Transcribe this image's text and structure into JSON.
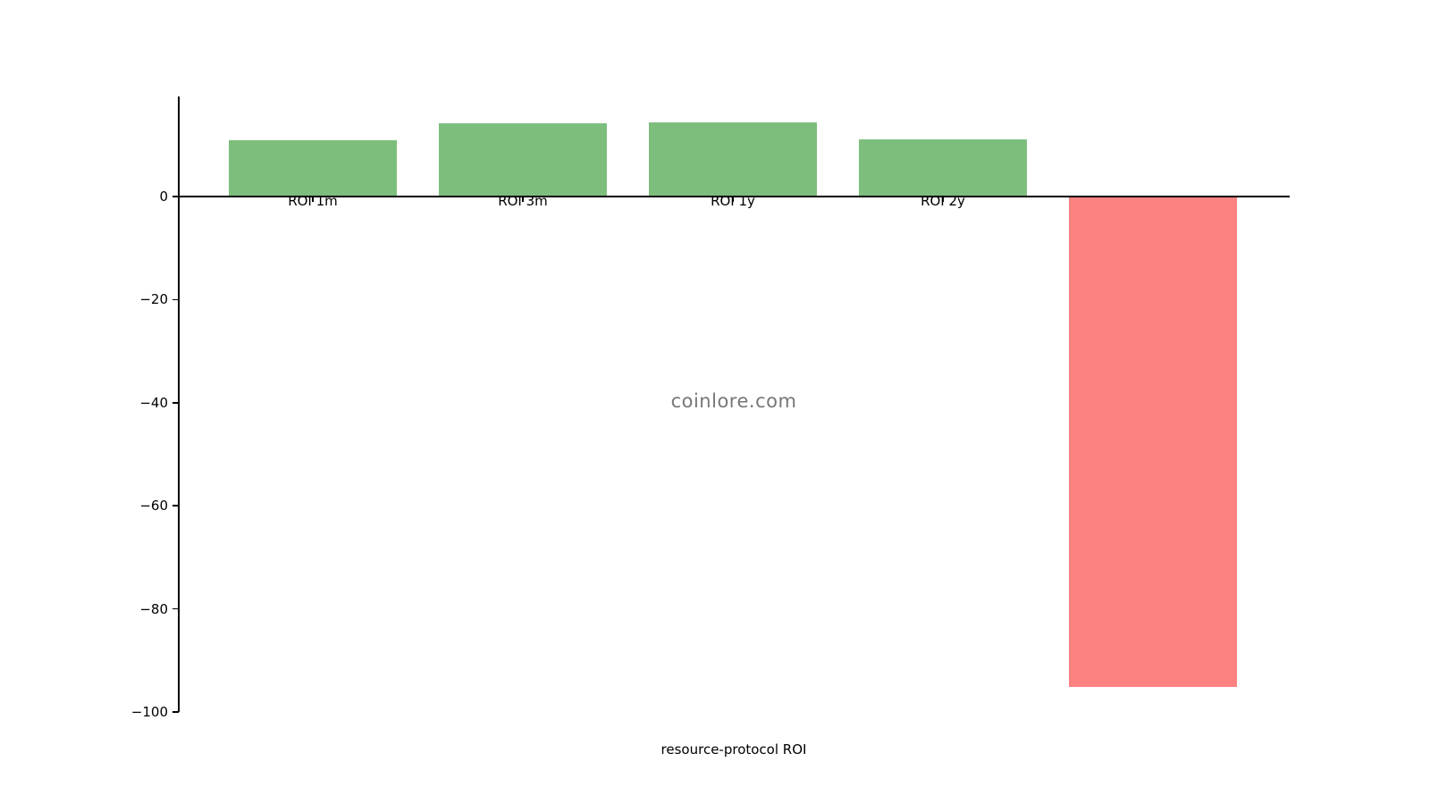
{
  "watermark": "coinlore.com",
  "chart_data": {
    "type": "bar",
    "title": "",
    "xlabel": "resource-protocol ROI",
    "ylabel": "",
    "categories": [
      "ROI 1m",
      "ROI 3m",
      "ROI 1y",
      "ROI 2y",
      ""
    ],
    "values": [
      10.9,
      14.2,
      14.4,
      11.1,
      -95.1
    ],
    "bar_colors": [
      "#7dbe7d",
      "#7dbe7d",
      "#7dbe7d",
      "#7dbe7d",
      "#fc8181"
    ],
    "positive_color": "#7dbe7d",
    "negative_color": "#fc8181",
    "ylim": [
      -100,
      19.5
    ],
    "yticks": [
      0,
      -20,
      -40,
      -60,
      -80,
      -100
    ],
    "ytick_labels": [
      "0",
      "−20",
      "−40",
      "−60",
      "−80",
      "−100"
    ],
    "grid": false,
    "legend": null,
    "axis_color": "#000000",
    "watermark_color": "#777777"
  }
}
